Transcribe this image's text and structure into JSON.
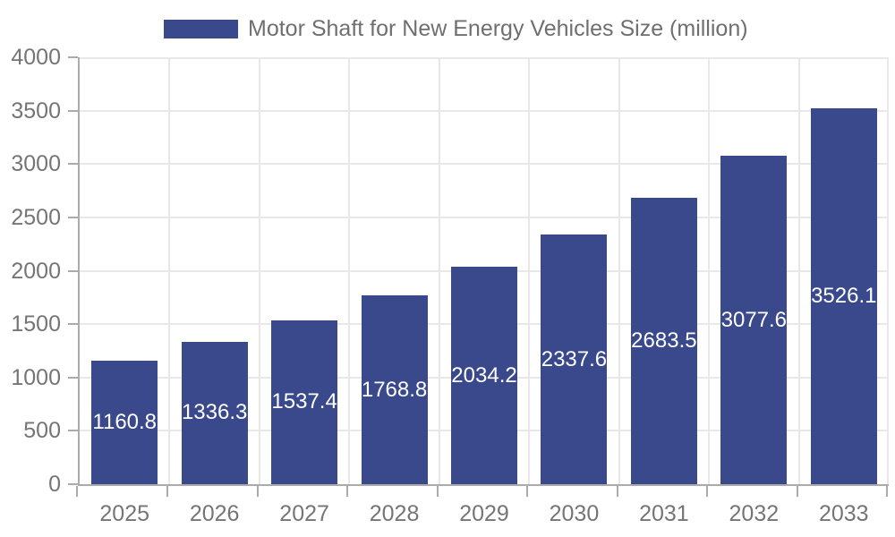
{
  "chart_data": {
    "type": "bar",
    "title": "Motor Shaft for New Energy Vehicles Size (million)",
    "legend_entries": [
      "Motor Shaft for New Energy Vehicles Size (million)"
    ],
    "legend_position": "top",
    "categories": [
      "2025",
      "2026",
      "2027",
      "2028",
      "2029",
      "2030",
      "2031",
      "2032",
      "2033"
    ],
    "values": [
      1160.8,
      1336.3,
      1537.4,
      1768.8,
      2034.2,
      2337.6,
      2683.5,
      3077.6,
      3526.1
    ],
    "data_labels": [
      "1160.8",
      "1336.3",
      "1537.4",
      "1768.8",
      "2034.2",
      "2337.6",
      "2683.5",
      "3077.6",
      "3526.1"
    ],
    "xlabel": "",
    "ylabel": "",
    "ylim": [
      0,
      4000
    ],
    "yticks": [
      0,
      500,
      1000,
      1500,
      2000,
      2500,
      3000,
      3500,
      4000
    ],
    "grid": true,
    "colors": {
      "bar": "#39498C",
      "bar_label_text": "#FFFFFF",
      "axis_text": "#757575",
      "legend_text": "#6F6F6F",
      "spine": "#ABABAB",
      "grid_line": "#E8E8E8"
    }
  }
}
